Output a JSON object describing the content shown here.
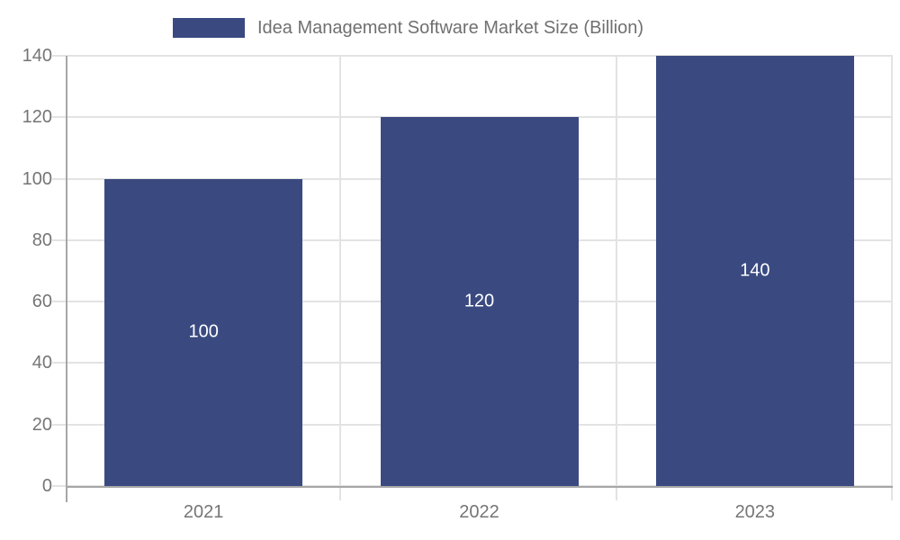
{
  "chart_data": {
    "type": "bar",
    "title": "Idea Management Software Market Size (Billion)",
    "categories": [
      "2021",
      "2022",
      "2023"
    ],
    "series": [
      {
        "name": "Idea Management Software Market Size (Billion)",
        "values": [
          100,
          120,
          140
        ],
        "data_labels": [
          "100",
          "120",
          "140"
        ]
      }
    ],
    "xlabel": "",
    "ylabel": "",
    "ylim": [
      0,
      140
    ],
    "yticks": [
      0,
      20,
      40,
      60,
      80,
      100,
      120,
      140
    ],
    "grid": true,
    "legend_position": "top-center",
    "value_labels_position": "inside-center",
    "colors": {
      "bar": "#3A4A81",
      "value_label": "#FFFFFF",
      "axis_line": "#A6A6A6",
      "gridline": "#E3E3E3",
      "tick_text": "#757575",
      "legend_text": "#707070",
      "background": "#FFFFFF"
    }
  }
}
